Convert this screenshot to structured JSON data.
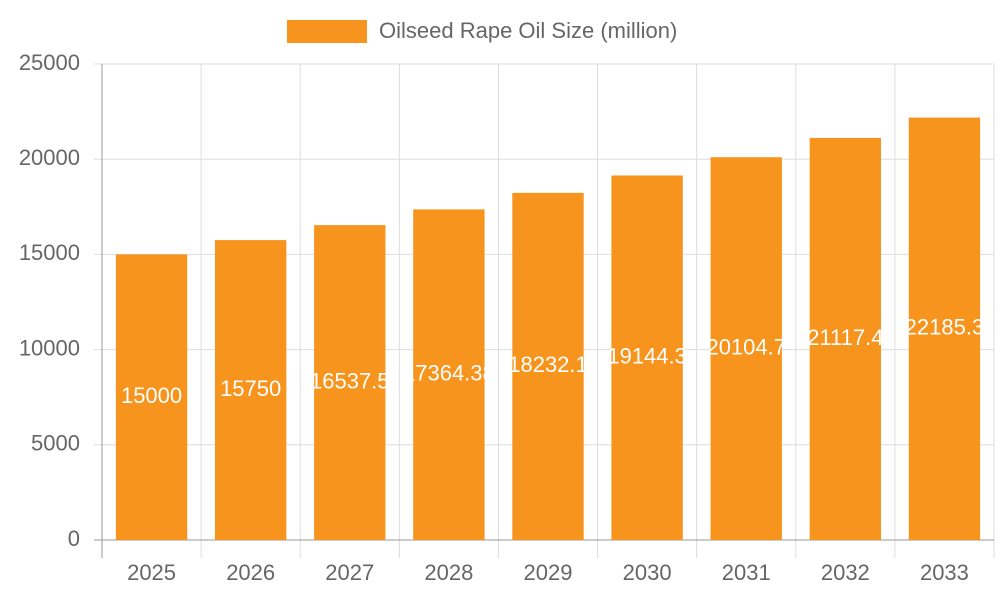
{
  "chart_data": {
    "type": "bar",
    "categories": [
      "2025",
      "2026",
      "2027",
      "2028",
      "2029",
      "2030",
      "2031",
      "2032",
      "2033"
    ],
    "series": [
      {
        "name": "Oilseed Rape Oil Size (million)",
        "color": "#f7941d",
        "values": [
          15000,
          15750,
          16537.5,
          17364.38,
          18232.1,
          19144.3,
          20104.7,
          21117.4,
          22185.3
        ]
      }
    ],
    "ylim": [
      0,
      25000
    ],
    "yticks": [
      0,
      5000,
      10000,
      15000,
      20000,
      25000
    ],
    "grid": true,
    "legend": "top"
  }
}
